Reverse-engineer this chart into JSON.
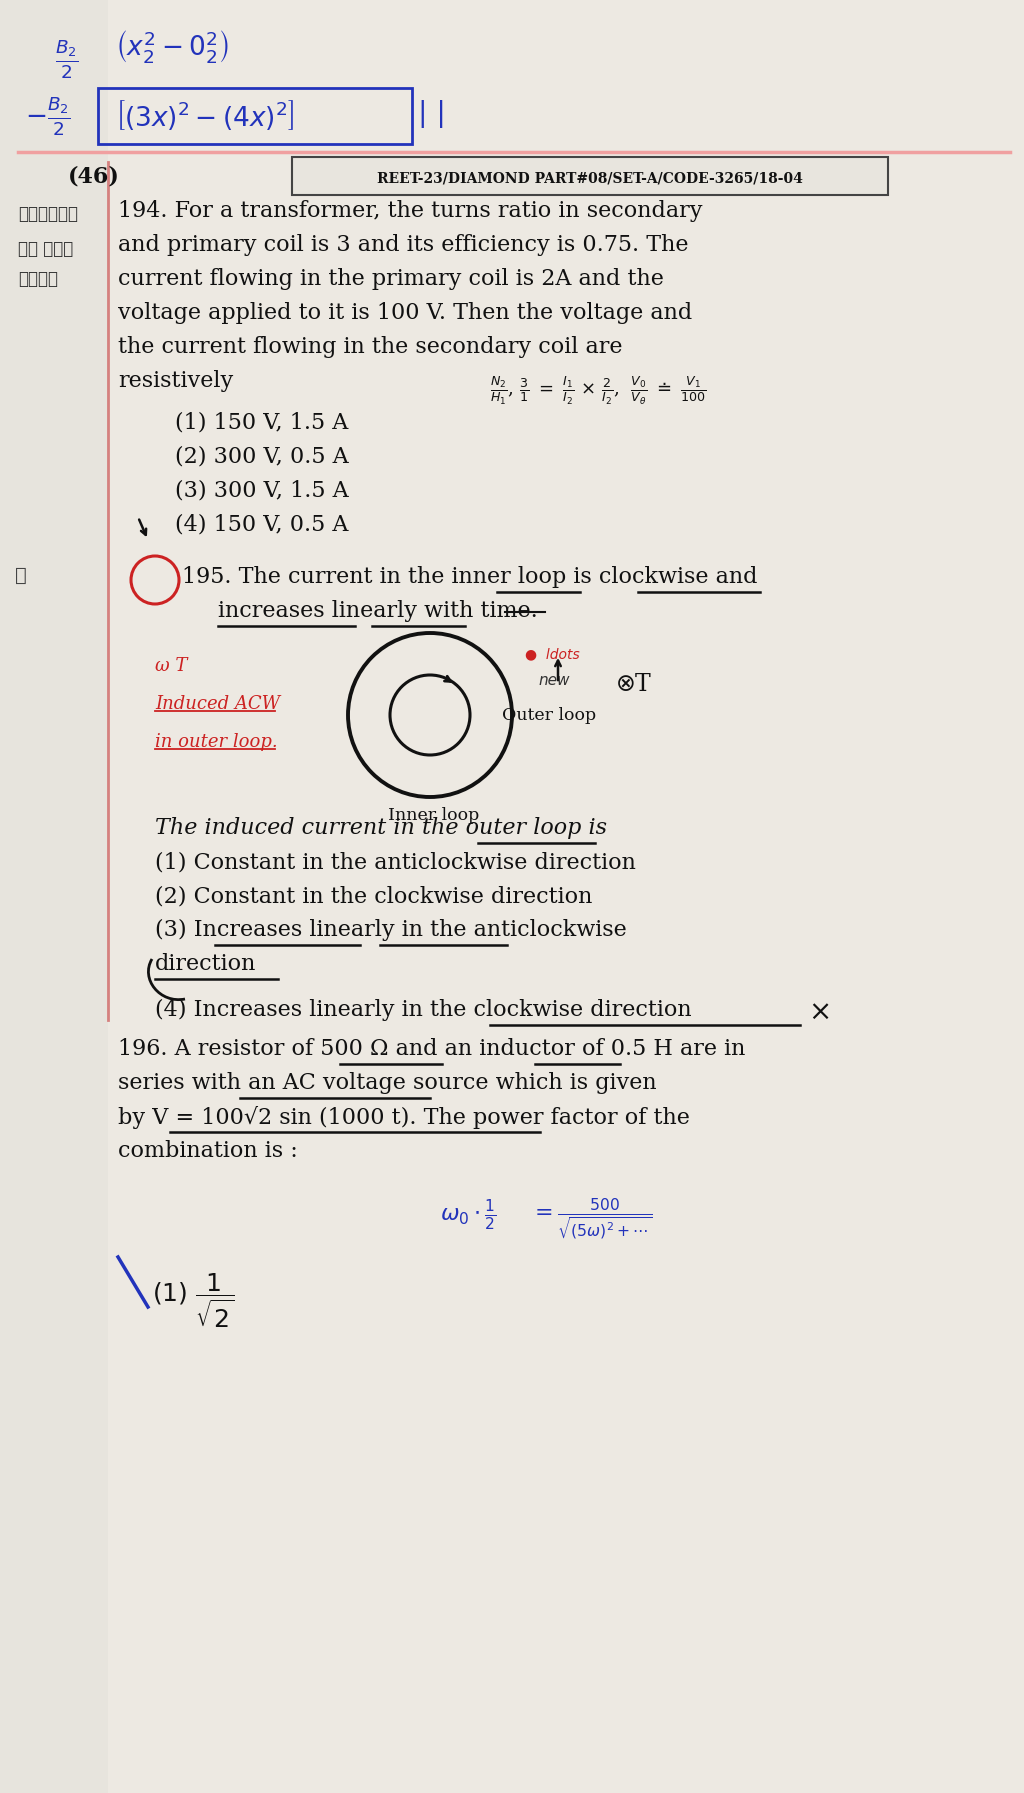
{
  "bg_color": "#c8c8c8",
  "page_color": "#f0ede8",
  "header_stamp": "REET-23/DIAMOND PART#08/SET-A/CODE-3265/18-04",
  "page_num": "(46)",
  "left_margin_texts": [
    "अनुपात",
    "है तथा",
    "विभव"
  ],
  "q194_lines": [
    "194. For a transformer, the turns ratio in secondary",
    "      and primary coil is 3 and its efficiency is 0.75. The",
    "      current flowing in the primary coil is 2A and the",
    "      voltage applied to it is 100 V. Then the voltage and",
    "      the current flowing in the secondary coil are",
    "      resistively"
  ],
  "options_194": [
    "(1) 150 V, 1.5 A",
    "(2) 300 V, 0.5 A",
    "(3) 300 V, 1.5 A",
    "(4) 150 V, 0.5 A"
  ],
  "q195_line1": "195. The current in the inner loop is clockwise and",
  "q195_line2": "      increases linearly with time.",
  "red_handwriting": [
    "ω T",
    "Induced ACW",
    "in outer loop."
  ],
  "loop_label_inner": "Inner loop",
  "loop_label_outer": "Outer loop",
  "outer_loop_lines": [
    "The induced current in the outer loop is",
    "(1) Constant in the anticlockwise direction",
    "(2) Constant in the clockwise direction",
    "(3) Increases linearly in the anticlockwise",
    "    direction"
  ],
  "q196_opt4": "(4) Increases linearly in the clockwise direction",
  "q196_lines": [
    "196. A resistor of 500 Ω and an inductor of 0.5 H are in",
    "      series with an AC voltage source which is given",
    "      by V = 100√2 sin (1000 t). The power factor of the",
    "      combination is :"
  ],
  "option_196_1": "(1)",
  "text_color": "#111111",
  "red_color": "#cc2222",
  "blue_color": "#2233bb"
}
